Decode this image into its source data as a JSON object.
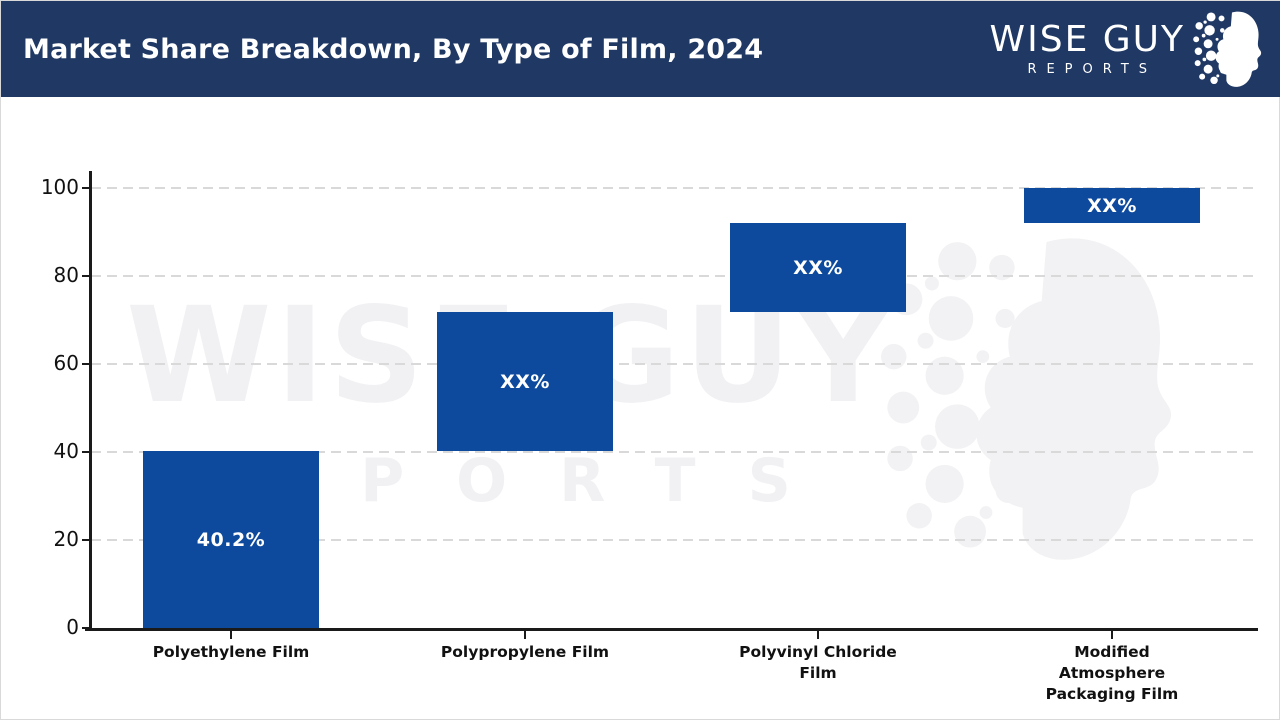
{
  "header": {
    "title": "Market Share Breakdown, By Type of Film, 2024",
    "logo": {
      "line1": "WISE GUY",
      "line2": "REPORTS"
    }
  },
  "watermark": {
    "line1": "WISE GUY",
    "line2": "REPORTS"
  },
  "chart_data": {
    "type": "bar",
    "subtype": "waterfall",
    "title": "Market Share Breakdown, By Type of Film, 2024",
    "categories": [
      "Polyethylene Film",
      "Polypropylene Film",
      "Polyvinyl Chloride Film",
      "Modified Atmosphere Packaging Film"
    ],
    "categories_wrapped": [
      [
        "Polyethylene Film"
      ],
      [
        "Polypropylene Film"
      ],
      [
        "Polyvinyl Chloride",
        "Film"
      ],
      [
        "Modified",
        "Atmosphere",
        "Packaging Film"
      ]
    ],
    "segments": [
      {
        "start": 0,
        "end": 40.2,
        "label": "40.2%"
      },
      {
        "start": 40.2,
        "end": 71.8,
        "label": "XX%"
      },
      {
        "start": 71.8,
        "end": 92.0,
        "label": "XX%"
      },
      {
        "start": 92.0,
        "end": 100,
        "label": "XX%"
      }
    ],
    "xlabel": "",
    "ylabel": "",
    "ylim": [
      0,
      100
    ],
    "yticks": [
      0,
      20,
      40,
      60,
      80,
      100
    ],
    "grid": "horizontal-dashed",
    "legend": "none",
    "bar_color": "#0d4a9e"
  },
  "colors": {
    "header_bg": "#1f3864",
    "bar": "#0d4a9e",
    "grid": "#d9d9d9",
    "axis": "#1a1a1a",
    "watermark": "#f1f1f4"
  }
}
